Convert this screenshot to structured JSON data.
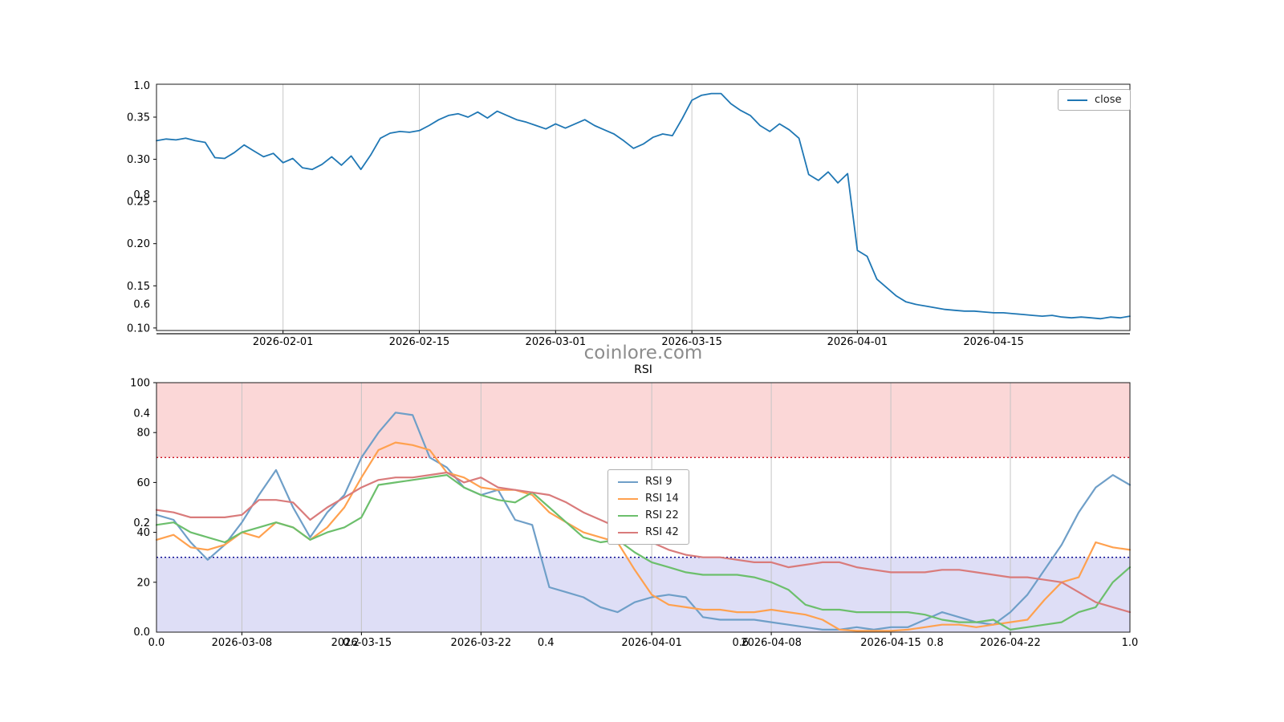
{
  "watermark": "coinlore.com",
  "figure_axis": {
    "y_tick_labels": [
      "1.0",
      "0.8",
      "0.6",
      "0.4",
      "0.2",
      "0.0"
    ],
    "x_tick_labels": [
      "0.0",
      "0.2",
      "0.4",
      "0.6",
      "0.8",
      "1.0"
    ]
  },
  "chart_data": [
    {
      "id": "price",
      "type": "line",
      "x_start_date": "2026-01-19",
      "x_interval": "daily",
      "x_tick_labels": [
        "2026-02-01",
        "2026-02-15",
        "2026-03-01",
        "2026-03-15",
        "2026-04-01",
        "2026-04-15"
      ],
      "x_tick_index": [
        13,
        27,
        41,
        55,
        72,
        86
      ],
      "y_tick_labels": [
        "0.35",
        "0.30",
        "0.25",
        "0.20",
        "0.15",
        "0.10"
      ],
      "y_tick_values": [
        0.35,
        0.3,
        0.25,
        0.2,
        0.15,
        0.1
      ],
      "ylim": [
        0.097,
        0.389
      ],
      "grid": "vertical",
      "legend_position": "upper right",
      "series": [
        {
          "name": "close",
          "color": "#1f77b4",
          "values": [
            0.322,
            0.324,
            0.323,
            0.325,
            0.322,
            0.32,
            0.302,
            0.301,
            0.308,
            0.317,
            0.31,
            0.303,
            0.307,
            0.296,
            0.301,
            0.29,
            0.288,
            0.294,
            0.303,
            0.293,
            0.304,
            0.288,
            0.305,
            0.325,
            0.331,
            0.333,
            0.332,
            0.334,
            0.34,
            0.347,
            0.352,
            0.354,
            0.35,
            0.356,
            0.349,
            0.357,
            0.352,
            0.347,
            0.344,
            0.34,
            0.336,
            0.342,
            0.337,
            0.342,
            0.347,
            0.34,
            0.335,
            0.33,
            0.322,
            0.313,
            0.318,
            0.326,
            0.33,
            0.328,
            0.348,
            0.37,
            0.376,
            0.378,
            0.378,
            0.366,
            0.358,
            0.352,
            0.34,
            0.333,
            0.342,
            0.335,
            0.325,
            0.282,
            0.275,
            0.285,
            0.272,
            0.283,
            0.192,
            0.185,
            0.158,
            0.148,
            0.138,
            0.131,
            0.128,
            0.126,
            0.124,
            0.122,
            0.121,
            0.12,
            0.12,
            0.119,
            0.118,
            0.118,
            0.117,
            0.116,
            0.115,
            0.114,
            0.115,
            0.113,
            0.112,
            0.113,
            0.112,
            0.111,
            0.113,
            0.112,
            0.114
          ]
        }
      ]
    },
    {
      "id": "rsi",
      "type": "line",
      "title": "RSI",
      "x_start_date": "2026-03-03",
      "x_interval": "daily",
      "x_tick_labels": [
        "2026-03-08",
        "2026-03-15",
        "2026-03-22",
        "2026-04-01",
        "2026-04-08",
        "2026-04-15",
        "2026-04-22"
      ],
      "x_tick_index": [
        5,
        12,
        19,
        29,
        36,
        43,
        50
      ],
      "y_tick_labels": [
        "100",
        "80",
        "60",
        "40",
        "20"
      ],
      "y_tick_values": [
        100,
        80,
        60,
        40,
        20
      ],
      "ylim": [
        0,
        100
      ],
      "grid": "vertical",
      "overbought_level": 70,
      "oversold_level": 30,
      "colors": {
        "overbought_band": "#fbd7d7",
        "oversold_band": "#dedef6",
        "overbought_line": "#cc1122",
        "oversold_line": "#00008b"
      },
      "legend_position": "center",
      "series": [
        {
          "name": "RSI 9",
          "color": "#6f9fc8",
          "values": [
            47,
            45,
            36,
            29,
            35,
            44,
            55,
            65,
            50,
            38,
            48,
            55,
            70,
            80,
            88,
            87,
            70,
            66,
            58,
            55,
            57,
            45,
            43,
            18,
            16,
            14,
            10,
            8,
            12,
            14,
            15,
            14,
            6,
            5,
            5,
            5,
            4,
            3,
            2,
            1,
            1,
            2,
            1,
            2,
            2,
            5,
            8,
            6,
            4,
            3,
            8,
            15,
            25,
            35,
            48,
            58,
            63,
            59
          ]
        },
        {
          "name": "RSI 14",
          "color": "#ffa14f",
          "values": [
            37,
            39,
            34,
            33,
            35,
            40,
            38,
            44,
            42,
            37,
            42,
            50,
            62,
            73,
            76,
            75,
            73,
            64,
            62,
            58,
            57,
            57,
            55,
            48,
            44,
            40,
            38,
            36,
            25,
            15,
            11,
            10,
            9,
            9,
            8,
            8,
            9,
            8,
            7,
            5,
            1,
            0.5,
            0.5,
            0.5,
            1,
            2,
            3,
            3,
            2,
            3,
            4,
            5,
            13,
            20,
            22,
            36,
            34,
            33
          ]
        },
        {
          "name": "RSI 22",
          "color": "#6cbf6c",
          "values": [
            43,
            44,
            40,
            38,
            36,
            40,
            42,
            44,
            42,
            37,
            40,
            42,
            46,
            59,
            60,
            61,
            62,
            63,
            58,
            55,
            53,
            52,
            56,
            50,
            44,
            38,
            36,
            37,
            32,
            28,
            26,
            24,
            23,
            23,
            23,
            22,
            20,
            17,
            11,
            9,
            9,
            8,
            8,
            8,
            8,
            7,
            5,
            4,
            4,
            5,
            1,
            2,
            3,
            4,
            8,
            10,
            20,
            26
          ]
        },
        {
          "name": "RSI 42",
          "color": "#d97b7b",
          "values": [
            49,
            48,
            46,
            46,
            46,
            47,
            53,
            53,
            52,
            45,
            50,
            54,
            58,
            61,
            62,
            62,
            63,
            64,
            60,
            62,
            58,
            57,
            56,
            55,
            52,
            48,
            45,
            42,
            40,
            36,
            33,
            31,
            30,
            30,
            29,
            28,
            28,
            26,
            27,
            28,
            28,
            26,
            25,
            24,
            24,
            24,
            25,
            25,
            24,
            23,
            22,
            22,
            21,
            20,
            16,
            12,
            10,
            8
          ]
        }
      ]
    }
  ]
}
